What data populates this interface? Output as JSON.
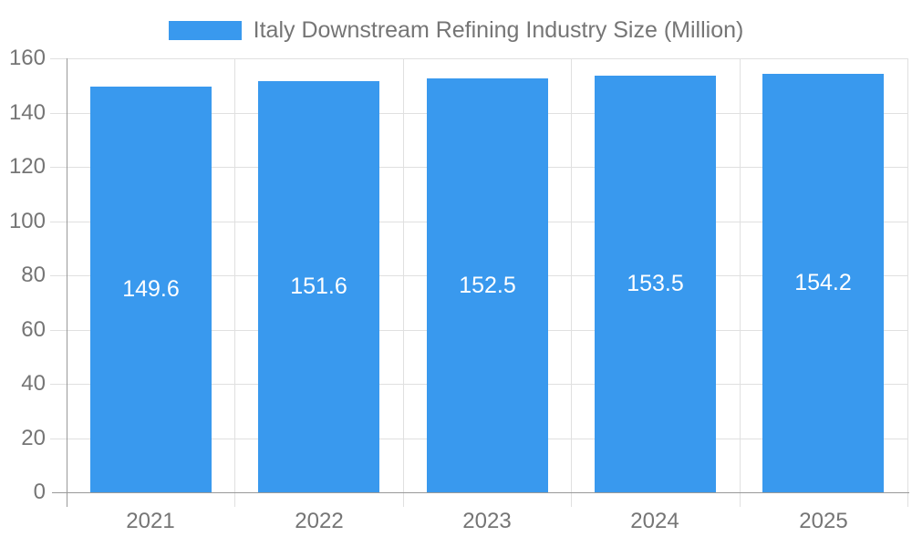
{
  "legend": {
    "series_label": "Italy Downstream Refining Industry Size (Million)"
  },
  "chart_data": {
    "type": "bar",
    "title": "Italy Downstream Refining Industry Size (Million)",
    "series_name": "Italy Downstream Refining Industry Size (Million)",
    "categories": [
      "2021",
      "2022",
      "2023",
      "2024",
      "2025"
    ],
    "values": [
      149.6,
      151.6,
      152.5,
      153.5,
      154.2
    ],
    "value_labels": [
      "149.6",
      "151.6",
      "152.5",
      "153.5",
      "154.2"
    ],
    "xlabel": "",
    "ylabel": "",
    "ylim": [
      0,
      160
    ],
    "ytick_step": 20,
    "ytick_labels": [
      "0",
      "20",
      "40",
      "60",
      "80",
      "100",
      "120",
      "140",
      "160"
    ],
    "grid": true,
    "legend_position": "top-center",
    "colors": {
      "bar": "#3999ee",
      "axis": "#999999",
      "grid": "#e0e0e0",
      "tick_text": "#757575",
      "legend_text": "#757575",
      "value_text": "#ffffff",
      "background": "#ffffff"
    }
  }
}
